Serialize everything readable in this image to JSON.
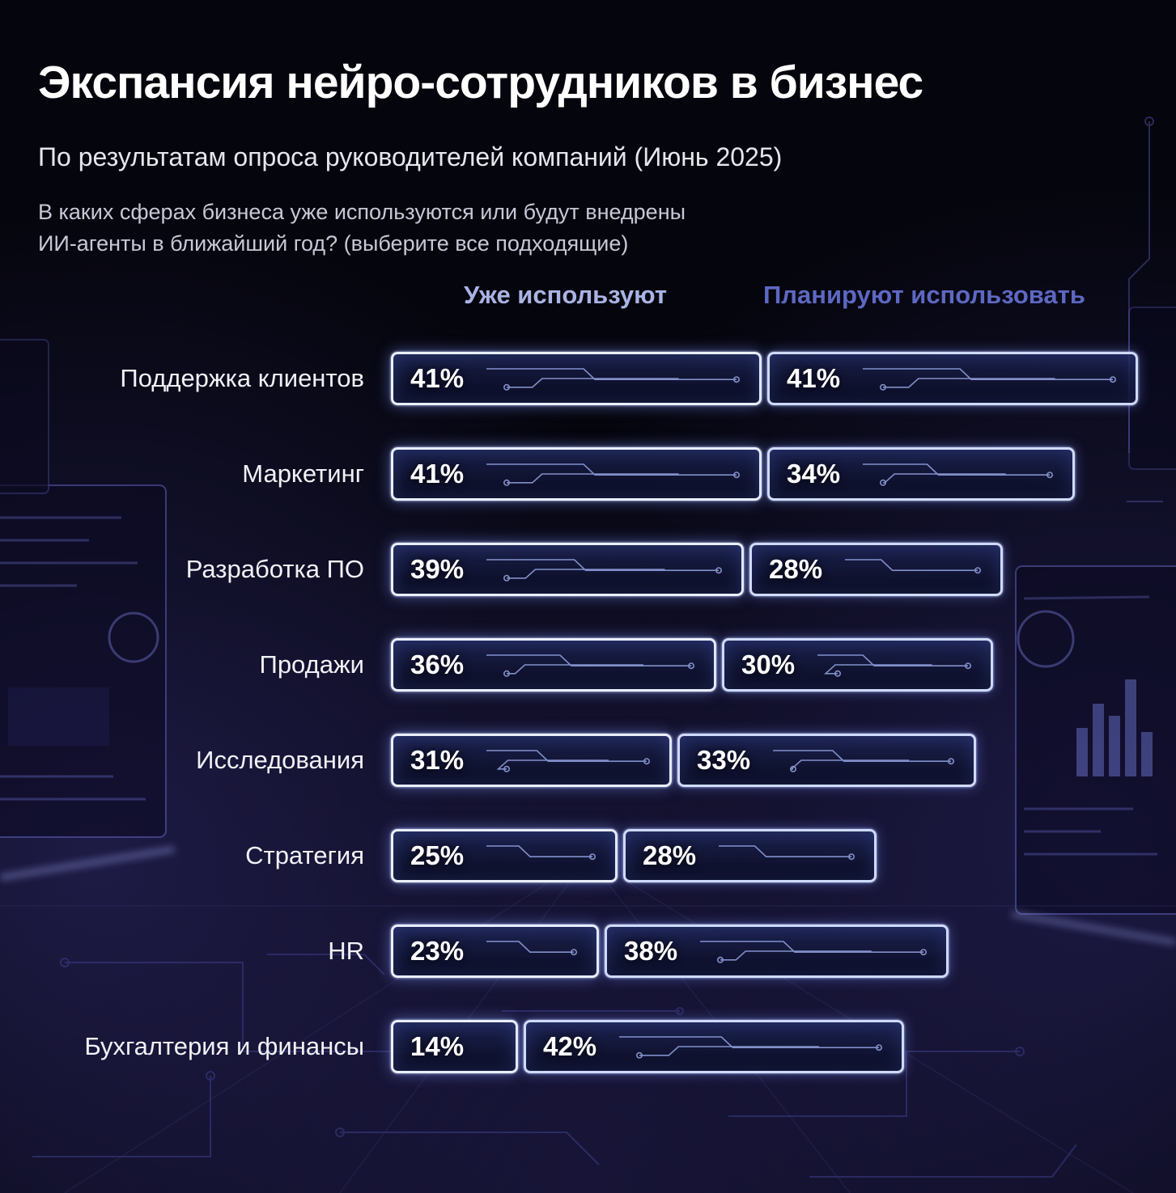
{
  "header": {
    "title": "Экспансия нейро-сотрудников в бизнес",
    "subtitle": "По результатам опроса руководителей компаний (Июнь 2025)",
    "question_line1": "В каких сферах бизнеса уже используются или будут внедрены",
    "question_line2": "ИИ-агенты в ближайший год? (выберите все подходящие)"
  },
  "colors": {
    "background": "#05050d",
    "bar_border": "#e9efff",
    "bar_glow": "#8fa6ff",
    "legend_already": "#a9b3e4",
    "legend_planning": "#5d68c2",
    "value_text": "#ffffff"
  },
  "chart_data": {
    "type": "bar",
    "orientation": "horizontal",
    "stacked": true,
    "value_suffix": "%",
    "categories": [
      "Поддержка клиентов",
      "Маркетинг",
      "Разработка ПО",
      "Продажи",
      "Исследования",
      "Стратегия",
      "HR",
      "Бухгалтерия и финансы"
    ],
    "series": [
      {
        "name": "Уже используют",
        "values": [
          41,
          41,
          39,
          36,
          31,
          25,
          23,
          14
        ]
      },
      {
        "name": "Планируют использовать",
        "values": [
          41,
          34,
          28,
          30,
          33,
          28,
          38,
          42
        ]
      }
    ],
    "xlim": [
      0,
      82
    ],
    "legend_position": "top",
    "grid": false
  }
}
